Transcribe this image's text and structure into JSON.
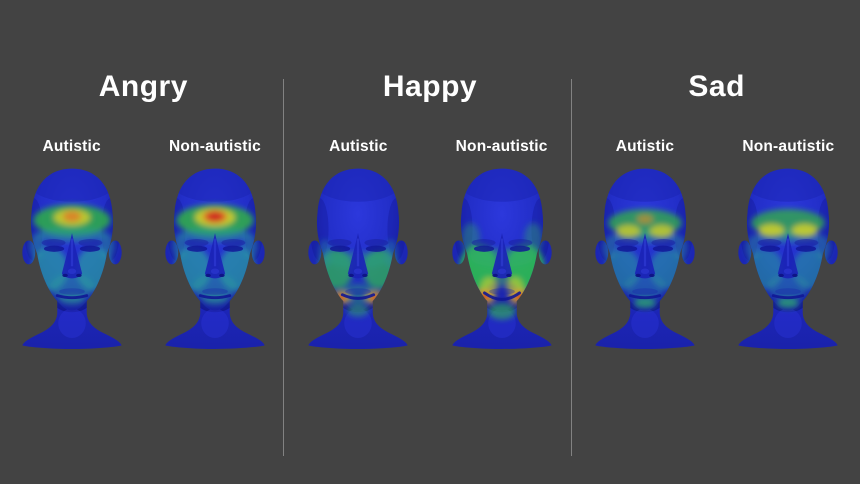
{
  "meta": {
    "background_color": "#434343",
    "divider_color": "#8d8d8d",
    "text_color": "#ffffff"
  },
  "panels": [
    {
      "emotion": "Angry",
      "columns": [
        {
          "group": "Autistic",
          "face": "angry_autistic"
        },
        {
          "group": "Non-autistic",
          "face": "angry_nonautistic"
        }
      ]
    },
    {
      "emotion": "Happy",
      "columns": [
        {
          "group": "Autistic",
          "face": "happy_autistic"
        },
        {
          "group": "Non-autistic",
          "face": "happy_nonautistic"
        }
      ]
    },
    {
      "emotion": "Sad",
      "columns": [
        {
          "group": "Autistic",
          "face": "sad_autistic"
        },
        {
          "group": "Non-autistic",
          "face": "sad_nonautistic"
        }
      ]
    }
  ],
  "heatmap_palette": {
    "base_low": "#222ec8",
    "teal": "#2aa0a4",
    "green": "#2fae57",
    "yellow": "#d2ce2c",
    "orange": "#e0762a",
    "red": "#d0201a"
  },
  "faces": {
    "angry_autistic": {
      "mouth": "straight",
      "hotspots": [
        [
          60,
          60,
          42,
          17,
          "#2fa84e",
          0.9
        ],
        [
          60,
          76,
          38,
          8,
          "#2a9e8e",
          0.55
        ],
        [
          22,
          88,
          8,
          14,
          "#2a96a8",
          0.5
        ],
        [
          98,
          88,
          8,
          14,
          "#2a96a8",
          0.5
        ],
        [
          60,
          57,
          20,
          9,
          "#d2ce2c",
          0.85
        ],
        [
          60,
          56,
          10,
          6,
          "#e0762a",
          0.8
        ],
        [
          36,
          113,
          20,
          24,
          "#2aa0a4",
          0.7
        ],
        [
          84,
          113,
          20,
          24,
          "#2aa0a4",
          0.7
        ],
        [
          60,
          133,
          24,
          15,
          "#2a9aa0",
          0.5
        ],
        [
          60,
          146,
          14,
          6,
          "#2fa88e",
          0.45
        ]
      ]
    },
    "angry_nonautistic": {
      "mouth": "straight",
      "hotspots": [
        [
          60,
          60,
          42,
          17,
          "#2fa84e",
          0.92
        ],
        [
          60,
          76,
          38,
          8,
          "#2a9e8e",
          0.55
        ],
        [
          22,
          88,
          8,
          14,
          "#2a96a8",
          0.5
        ],
        [
          98,
          88,
          8,
          14,
          "#2a96a8",
          0.5
        ],
        [
          60,
          57,
          22,
          10,
          "#d2ce2c",
          0.9
        ],
        [
          60,
          56,
          13,
          7,
          "#e05a28",
          0.9
        ],
        [
          60,
          56,
          8,
          5,
          "#cc2420",
          0.9
        ],
        [
          36,
          113,
          20,
          24,
          "#2aa0a4",
          0.7
        ],
        [
          84,
          113,
          20,
          24,
          "#2aa0a4",
          0.7
        ],
        [
          60,
          133,
          24,
          15,
          "#2a9aa0",
          0.5
        ],
        [
          60,
          146,
          14,
          6,
          "#2fa88e",
          0.45
        ]
      ]
    },
    "happy_autistic": {
      "mouth": "slight",
      "hotspots": [
        [
          36,
          113,
          19,
          22,
          "#2fae5a",
          0.8
        ],
        [
          84,
          113,
          19,
          22,
          "#2fae5a",
          0.8
        ],
        [
          60,
          103,
          32,
          9,
          "#2f9e86",
          0.45
        ],
        [
          60,
          140,
          20,
          11,
          "#2fa47a",
          0.45
        ],
        [
          24,
          96,
          7,
          15,
          "#2a8ea8",
          0.4
        ],
        [
          96,
          96,
          7,
          15,
          "#2a8ea8",
          0.4
        ],
        [
          42,
          144,
          10,
          7,
          "#d8c22e",
          0.75
        ],
        [
          78,
          144,
          10,
          7,
          "#d8c22e",
          0.75
        ],
        [
          42,
          144,
          5.5,
          3.8,
          "#d62e1f",
          0.95
        ],
        [
          78,
          144,
          5.5,
          3.8,
          "#d62e1f",
          0.95
        ],
        [
          60,
          158,
          12,
          7,
          "#2fa467",
          0.55
        ]
      ]
    },
    "happy_nonautistic": {
      "mouth": "smile",
      "hotspots": [
        [
          35,
          111,
          21,
          25,
          "#2fbe50",
          0.9
        ],
        [
          85,
          111,
          21,
          25,
          "#2fbe50",
          0.9
        ],
        [
          60,
          101,
          34,
          10,
          "#2fae6e",
          0.5
        ],
        [
          26,
          80,
          10,
          17,
          "#2f9e72",
          0.45
        ],
        [
          94,
          80,
          10,
          17,
          "#2f9e72",
          0.45
        ],
        [
          60,
          124,
          10,
          8,
          "#3fae4e",
          0.5
        ],
        [
          46,
          133,
          9,
          11,
          "#c9d02c",
          0.65
        ],
        [
          74,
          133,
          9,
          11,
          "#c9d02c",
          0.65
        ],
        [
          41,
          143,
          11,
          8,
          "#ddb62a",
          0.85
        ],
        [
          79,
          143,
          11,
          8,
          "#ddb62a",
          0.85
        ],
        [
          41,
          143,
          6,
          4.2,
          "#d0201a",
          1
        ],
        [
          79,
          143,
          6,
          4.2,
          "#d0201a",
          1
        ],
        [
          60,
          159,
          15,
          9,
          "#2fae57",
          0.65
        ]
      ]
    },
    "sad_autistic": {
      "mouth": "straight",
      "hotspots": [
        [
          60,
          63,
          40,
          15,
          "#31a452",
          0.85
        ],
        [
          60,
          78,
          36,
          7,
          "#2a9e8e",
          0.5
        ],
        [
          42,
          72,
          13,
          7,
          "#d0cc2c",
          0.8
        ],
        [
          78,
          72,
          13,
          7,
          "#d0cc2c",
          0.8
        ],
        [
          60,
          59,
          9,
          5,
          "#da8c2a",
          0.65
        ],
        [
          22,
          90,
          8,
          13,
          "#2a92a4",
          0.45
        ],
        [
          98,
          90,
          8,
          13,
          "#2a92a4",
          0.45
        ],
        [
          36,
          113,
          19,
          22,
          "#2a96a0",
          0.6
        ],
        [
          84,
          113,
          19,
          22,
          "#2a96a0",
          0.6
        ],
        [
          60,
          133,
          22,
          14,
          "#2a96a0",
          0.4
        ],
        [
          60,
          150,
          12,
          5.5,
          "#2fae6e",
          0.75
        ]
      ]
    },
    "sad_nonautistic": {
      "mouth": "straight",
      "hotspots": [
        [
          60,
          63,
          40,
          15,
          "#31a452",
          0.85
        ],
        [
          60,
          78,
          36,
          7,
          "#2a9e8e",
          0.5
        ],
        [
          42,
          71,
          14,
          7,
          "#d4d02c",
          0.85
        ],
        [
          78,
          71,
          14,
          7,
          "#d4d02c",
          0.85
        ],
        [
          22,
          90,
          8,
          13,
          "#2a92a4",
          0.45
        ],
        [
          98,
          90,
          8,
          13,
          "#2a92a4",
          0.45
        ],
        [
          36,
          113,
          19,
          22,
          "#2a96a0",
          0.6
        ],
        [
          84,
          113,
          19,
          22,
          "#2a96a0",
          0.6
        ],
        [
          60,
          133,
          22,
          14,
          "#2a96a0",
          0.4
        ],
        [
          60,
          150,
          12,
          5.5,
          "#2fae6e",
          0.75
        ]
      ]
    }
  }
}
